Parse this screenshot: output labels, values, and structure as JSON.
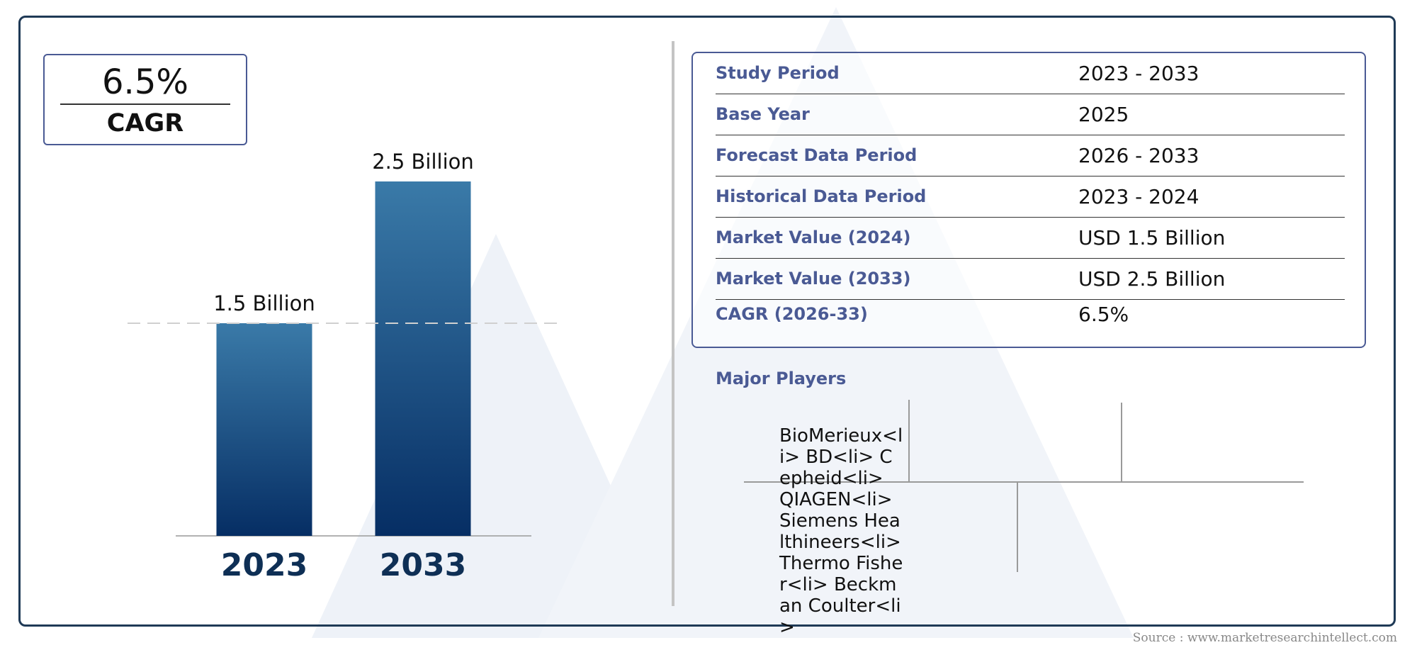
{
  "cagr": {
    "value": "6.5%",
    "label": "CAGR"
  },
  "chart_data": {
    "type": "bar",
    "categories": [
      "2023",
      "2033"
    ],
    "values": [
      1.5,
      2.5
    ],
    "value_labels": [
      "1.5 Billion",
      "2.5 Billion"
    ],
    "colors": {
      "bar_top": "#3a7aa8",
      "bar_bottom": "#062e64",
      "category_label": "#0e2f55"
    },
    "grid": false,
    "reference_line": "dashed line at 2023 value"
  },
  "info": {
    "rows": [
      {
        "label": "Study Period",
        "value": "2023 - 2033"
      },
      {
        "label": "Base Year",
        "value": "2025"
      },
      {
        "label": "Forecast Data Period",
        "value": "2026 - 2033"
      },
      {
        "label": "Historical Data Period",
        "value": "2023 - 2024"
      },
      {
        "label": "Market Value (2024)",
        "value": "USD 1.5 Billion"
      },
      {
        "label": "Market Value (2033)",
        "value": "USD 2.5 Billion"
      },
      {
        "label": "CAGR (2026-33)",
        "value": "6.5%"
      }
    ]
  },
  "players": {
    "title": "Major Players",
    "text": "BioMerieux<li> BD<li> Cepheid<li> QIAGEN<li> Siemens Healthineers<li> Thermo Fisher<li> Beckman Coulter<li>"
  },
  "source": "Source : www.marketresearchintellect.com",
  "colors": {
    "frame": "#1f3a56",
    "accent": "#4a5a94",
    "watermark": "#eef2f8"
  }
}
